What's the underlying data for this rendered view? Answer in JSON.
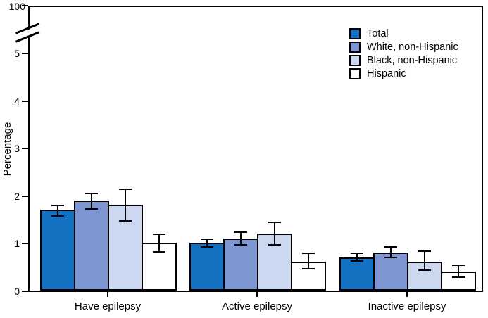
{
  "chart_data": {
    "type": "bar",
    "title": "",
    "xlabel": "",
    "ylabel": "Percentage",
    "categories": [
      "Have epilepsy",
      "Active epilepsy",
      "Inactive epilepsy"
    ],
    "series": [
      {
        "name": "Total",
        "color": "#1470c0",
        "values": [
          1.7,
          1.0,
          0.7
        ],
        "ci_low": [
          1.55,
          0.9,
          0.6
        ],
        "ci_high": [
          1.8,
          1.1,
          0.8
        ]
      },
      {
        "name": "White, non-Hispanic",
        "color": "#7d96d1",
        "values": [
          1.9,
          1.1,
          0.8
        ],
        "ci_low": [
          1.7,
          0.95,
          0.68
        ],
        "ci_high": [
          2.05,
          1.25,
          0.93
        ]
      },
      {
        "name": "Black, non-Hispanic",
        "color": "#ccd8ef",
        "values": [
          1.8,
          1.2,
          0.6
        ],
        "ci_low": [
          1.45,
          0.95,
          0.42
        ],
        "ci_high": [
          2.15,
          1.45,
          0.85
        ]
      },
      {
        "name": "Hispanic",
        "color": "#ffffff",
        "values": [
          1.0,
          0.6,
          0.4
        ],
        "ci_low": [
          0.8,
          0.45,
          0.27
        ],
        "ci_high": [
          1.2,
          0.8,
          0.55
        ]
      }
    ],
    "error_bars": true,
    "y_ticks": [
      0,
      1,
      2,
      3,
      4,
      5
    ],
    "ylim": [
      0,
      5
    ],
    "y_axis_break": true,
    "y_top_label": "100",
    "grid": false,
    "legend_position": "upper right",
    "axis_color": "#000000",
    "background_color": "#ffffff"
  }
}
